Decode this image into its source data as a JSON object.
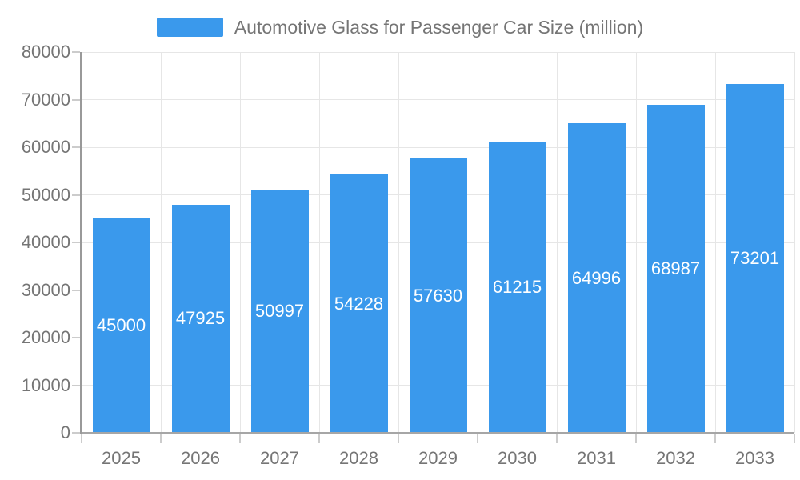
{
  "legend": {
    "label": "Automotive Glass for Passenger Car Size (million)",
    "swatch_color": "#3a99ec"
  },
  "chart_data": {
    "type": "bar",
    "title": "Automotive Glass for Passenger Car Size (million)",
    "categories": [
      "2025",
      "2026",
      "2027",
      "2028",
      "2029",
      "2030",
      "2031",
      "2032",
      "2033"
    ],
    "values": [
      45000,
      47925,
      50997,
      54228,
      57630,
      61215,
      64996,
      68987,
      73201
    ],
    "xlabel": "",
    "ylabel": "",
    "ylim": [
      0,
      80000
    ],
    "yticks": [
      0,
      10000,
      20000,
      30000,
      40000,
      50000,
      60000,
      70000,
      80000
    ],
    "grid": true,
    "legend_position": "top-center",
    "value_labels": "inside-center",
    "colors": {
      "bar": "#3a99ec",
      "value_label": "#ffffff",
      "axis_text": "#757575",
      "grid_line": "#e6e6e6",
      "axis_line": "#999999",
      "tick": "#cccccc"
    }
  }
}
